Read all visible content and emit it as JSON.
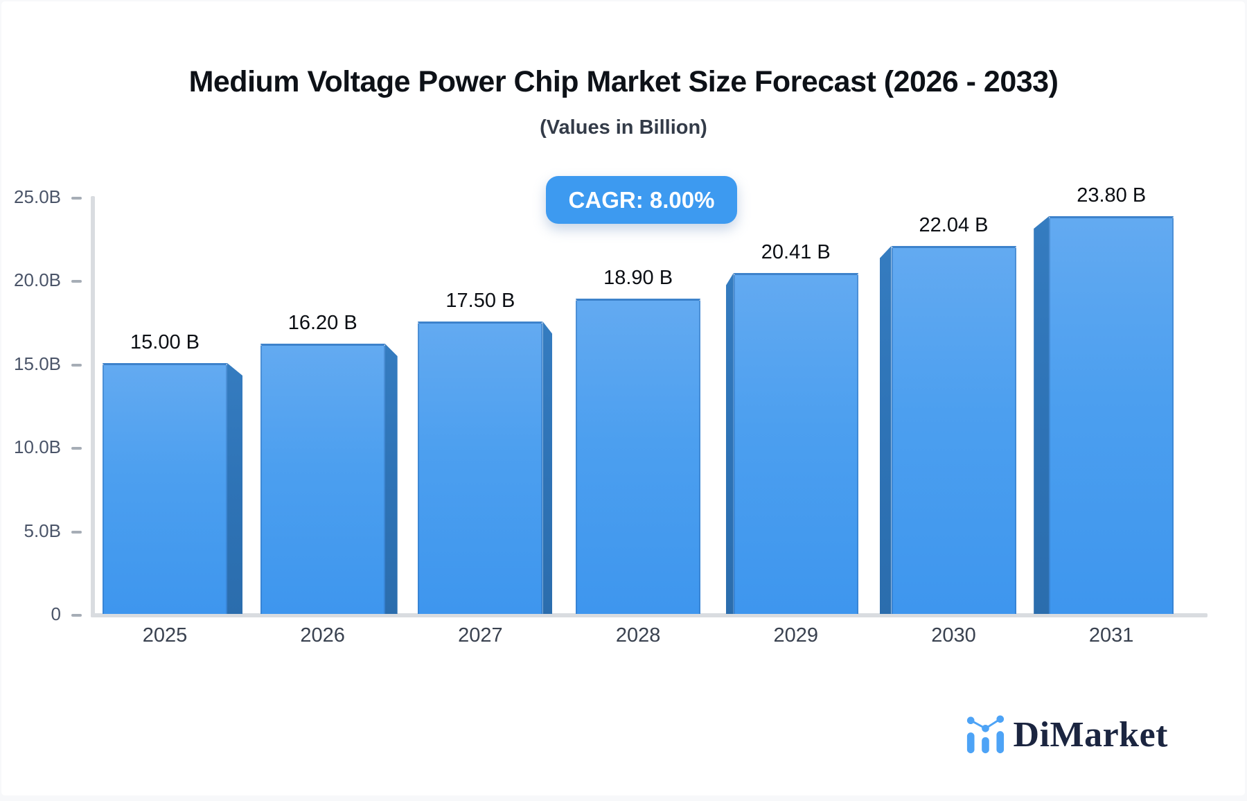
{
  "page": {
    "title": "Medium Voltage Power Chip Market Size Forecast (2026 - 2033)",
    "subtitle": "(Values in Billion)"
  },
  "badge": {
    "label": "CAGR: 8.00%"
  },
  "brand": {
    "name": "DiMarket",
    "icon": "bar-chart-logo-icon"
  },
  "chart_data": {
    "type": "bar",
    "title": "Medium Voltage Power Chip Market Size Forecast (2026 - 2033)",
    "subtitle": "(Values in Billion)",
    "annotation": "CAGR: 8.00%",
    "categories": [
      "2025",
      "2026",
      "2027",
      "2028",
      "2029",
      "2030",
      "2031"
    ],
    "values": [
      15.0,
      16.2,
      17.5,
      18.9,
      20.41,
      22.04,
      23.8
    ],
    "value_labels": [
      "15.00 B",
      "16.20 B",
      "17.50 B",
      "18.90 B",
      "20.41 B",
      "22.04 B",
      "23.80 B"
    ],
    "y_axis": {
      "range": [
        0,
        25
      ],
      "ticks": [
        {
          "value": 25,
          "label": "25.0B"
        },
        {
          "value": 20,
          "label": "20.0B"
        },
        {
          "value": 15,
          "label": "15.0B"
        },
        {
          "value": 10,
          "label": "10.0B"
        },
        {
          "value": 5,
          "label": "5.0B"
        },
        {
          "value": 0,
          "label": "0"
        }
      ]
    },
    "grid": "off",
    "legend": "none",
    "colors": {
      "bar_face_top": "#63aaf1",
      "bar_face_bottom": "#3e96ee",
      "bar_side": "#2e74b8",
      "badge_bg": "#3d9af0",
      "axis_line": "#d9dce0"
    }
  }
}
